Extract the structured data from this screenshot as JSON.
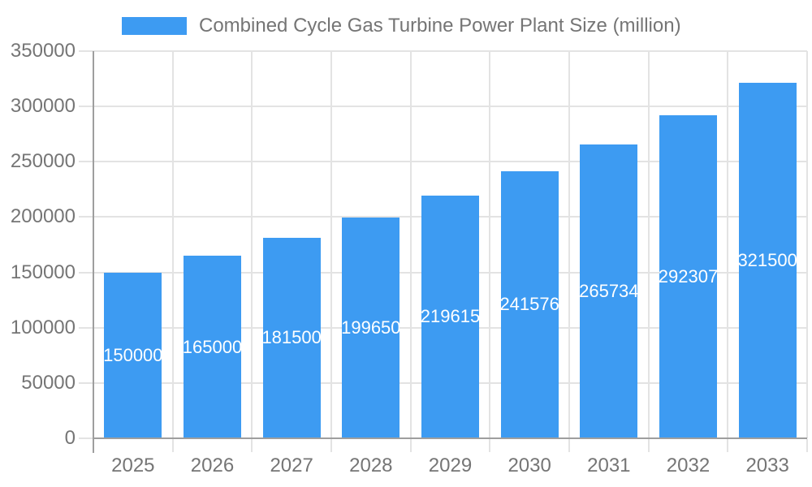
{
  "chart_data": {
    "type": "bar",
    "title": "Combined Cycle Gas Turbine Power Plant Size (million)",
    "categories": [
      "2025",
      "2026",
      "2027",
      "2028",
      "2029",
      "2030",
      "2031",
      "2032",
      "2033"
    ],
    "series": [
      {
        "name": "Combined Cycle Gas Turbine Power Plant Size (million)",
        "values": [
          150000,
          165000,
          181500,
          199650,
          219615,
          241576,
          265734,
          292307,
          321500
        ],
        "value_labels": [
          "150000",
          "165000",
          "181500",
          "199650",
          "219615",
          "241576",
          "265734",
          "292307",
          "321500"
        ]
      }
    ],
    "xlabel": "",
    "ylabel": "",
    "ylim": [
      0,
      350000
    ],
    "ytick_step": 50000,
    "ytick_labels": [
      "0",
      "50000",
      "100000",
      "150000",
      "200000",
      "250000",
      "300000",
      "350000"
    ],
    "grid": true,
    "legend_position": "top",
    "colors": {
      "bar": "#3D9BF2",
      "axis_line": "#9E9E9E",
      "gridline": "#E3E3E3",
      "tick_text": "#757575",
      "title_text": "#757575",
      "value_label_text": "#FFFFFF",
      "background": "#FFFFFF"
    }
  }
}
